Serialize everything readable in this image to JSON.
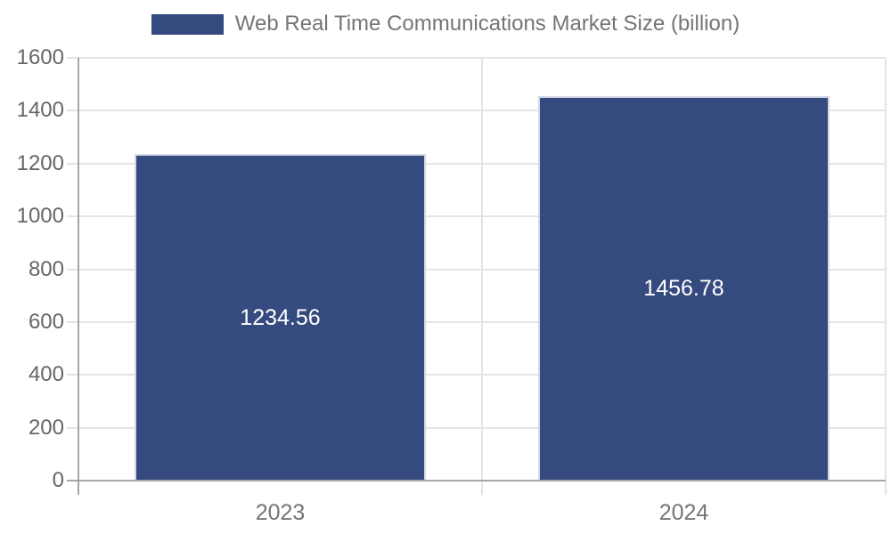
{
  "chart_data": {
    "type": "bar",
    "title": "Web Real Time Communications Market Size (billion)",
    "categories": [
      "2023",
      "2024"
    ],
    "series": [
      {
        "name": "Web Real Time Communications Market Size (billion)",
        "values": [
          1234.56,
          1456.78
        ]
      }
    ],
    "data_labels": [
      "1234.56",
      "1456.78"
    ],
    "xlabel": "",
    "ylabel": "",
    "ylim": [
      0,
      1600
    ],
    "yticks": [
      0,
      200,
      400,
      600,
      800,
      1000,
      1200,
      1400,
      1600
    ],
    "grid": true,
    "legend_position": "top-center"
  },
  "colors": {
    "bar_fill": "#354A7E",
    "bar_border": "#D4D8E6",
    "axis_line": "#A6A6A6",
    "grid_line": "#E4E4E4",
    "ytick_label": "#666666",
    "xtick_label": "#757575",
    "title_text": "#757575",
    "data_label": "#FFFFFF",
    "background": "#FFFFFF"
  }
}
